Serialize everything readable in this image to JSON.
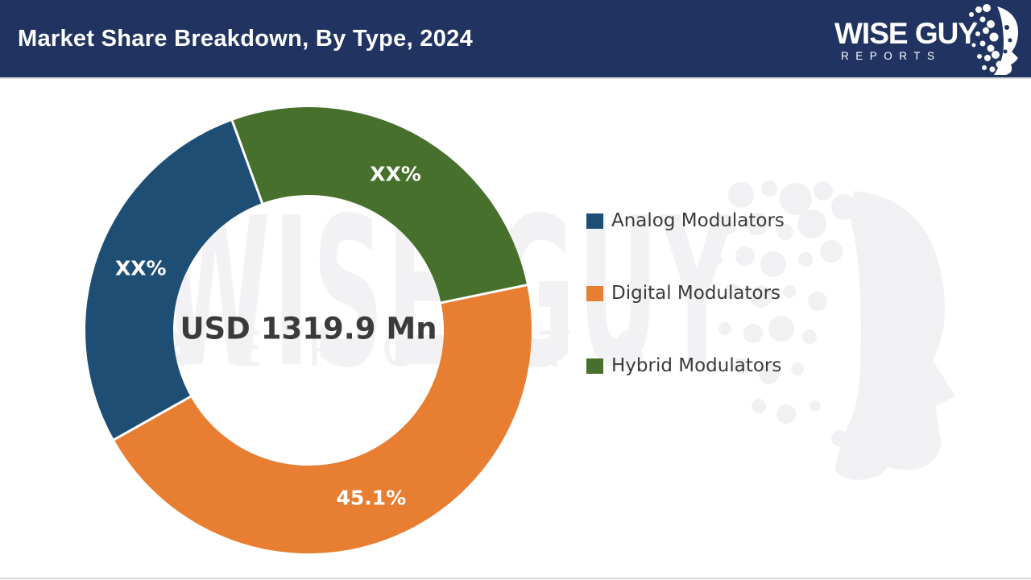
{
  "header": {
    "title": "Market Share Breakdown, By Type, 2024",
    "logo": {
      "name": "WISE GUY",
      "sub": "REPORTS"
    }
  },
  "watermark": {
    "line1": "WISE GUY",
    "line2": "REPORTS"
  },
  "chart_data": {
    "type": "pie",
    "subtype": "donut",
    "title": "Market Share Breakdown, By Type, 2024",
    "center_label": "USD 1319.9 Mn",
    "units": "percent market share",
    "start_angle_deg": 110,
    "direction": "clockwise",
    "segments": [
      {
        "name": "Hybrid Modulators",
        "value_pct": 27.3,
        "label": "XX%",
        "color": "#46702B"
      },
      {
        "name": "Digital Modulators",
        "value_pct": 45.1,
        "label": "45.1%",
        "color": "#E87E31"
      },
      {
        "name": "Analog Modulators",
        "value_pct": 27.6,
        "label": "XX%",
        "color": "#1F4E74"
      }
    ],
    "legend": [
      {
        "name": "Analog Modulators",
        "color": "#1F4E74"
      },
      {
        "name": "Digital Modulators",
        "color": "#E87E31"
      },
      {
        "name": "Hybrid Modulators",
        "color": "#46702B"
      }
    ],
    "legend_position": "right"
  },
  "colors": {
    "header_bg": "#203361",
    "title_text": "#ffffff",
    "center_text": "#3b3b3b",
    "slice_label_text": "#ffffff"
  }
}
